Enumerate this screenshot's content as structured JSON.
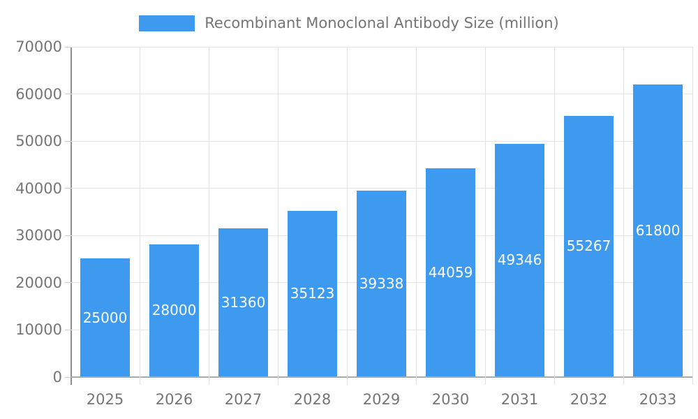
{
  "legend": {
    "label": "Recombinant Monoclonal Antibody Size (million)"
  },
  "colors": {
    "bar": "#3D9AEE",
    "axis_text": "#757575",
    "gridline": "#e6e6e6",
    "value_label": "#ffffff"
  },
  "chart_data": {
    "type": "bar",
    "title": "Recombinant Monoclonal Antibody Size (million)",
    "categories": [
      "2025",
      "2026",
      "2027",
      "2028",
      "2029",
      "2030",
      "2031",
      "2032",
      "2033"
    ],
    "values": [
      25000,
      28000,
      31360,
      35123,
      39338,
      44059,
      49346,
      55267,
      61800
    ],
    "value_labels": [
      "25000",
      "28000",
      "31360",
      "35123",
      "39338",
      "44059",
      "49346",
      "55267",
      "61800"
    ],
    "xlabel": "",
    "ylabel": "",
    "ylim": [
      0,
      70000
    ],
    "yticks": [
      0,
      10000,
      20000,
      30000,
      40000,
      50000,
      60000,
      70000
    ],
    "ytick_labels": [
      "0",
      "10000",
      "20000",
      "30000",
      "40000",
      "50000",
      "60000",
      "70000"
    ],
    "grid": true,
    "legend_position": "top",
    "value_labels_inside_bars": true
  }
}
